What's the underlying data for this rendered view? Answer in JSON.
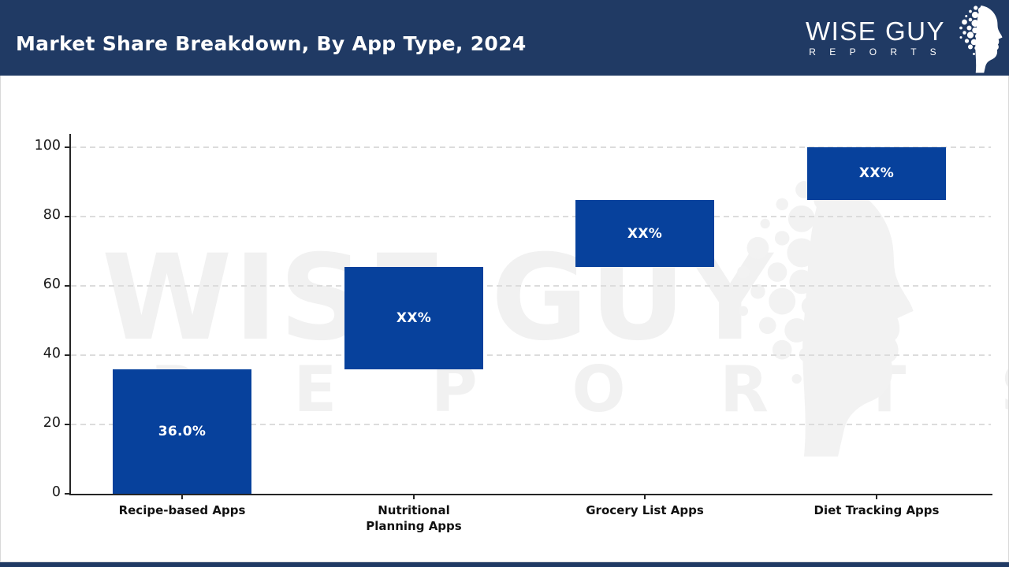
{
  "header": {
    "title": "Market Share Breakdown, By App Type, 2024",
    "logo_line1": "WISE GUY",
    "logo_line2": "R E P O R T S"
  },
  "watermark": {
    "line1": "WISE GUY",
    "line2": "R E P O R T S"
  },
  "chart_data": {
    "type": "bar",
    "subtype": "waterfall",
    "title": "Market Share Breakdown, By App Type, 2024",
    "categories": [
      "Recipe-based Apps",
      "Nutritional Planning Apps",
      "Grocery List Apps",
      "Diet Tracking Apps"
    ],
    "categories_display": [
      "Recipe-based Apps",
      "Nutritional\nPlanning Apps",
      "Grocery List Apps",
      "Diet Tracking Apps"
    ],
    "bar_labels": [
      "36.0%",
      "XX%",
      "XX%",
      "XX%"
    ],
    "segments": [
      {
        "start": 0,
        "end": 36.0
      },
      {
        "start": 36.0,
        "end": 65.4
      },
      {
        "start": 65.4,
        "end": 84.8
      },
      {
        "start": 84.8,
        "end": 100.0
      }
    ],
    "values_pct_estimated": [
      36.0,
      29.4,
      19.4,
      15.2
    ],
    "ylim": [
      0,
      100
    ],
    "yticks": [
      0,
      20,
      40,
      60,
      80,
      100
    ],
    "grid": "horizontal-dashed",
    "legend": "none",
    "colors": {
      "bar": "#07419c",
      "header_navy": "#203a64",
      "axis": "#262626",
      "grid": "#dcdcdc",
      "bar_label_text": "#ffffff",
      "tick_text": "#1a1a1a"
    }
  }
}
